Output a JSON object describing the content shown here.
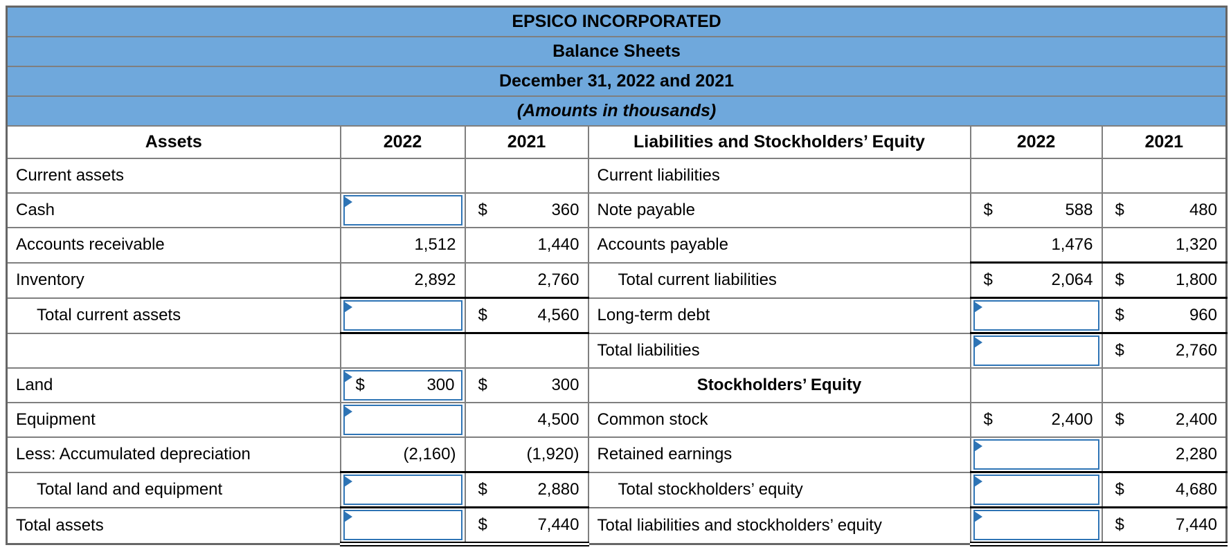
{
  "titles": [
    "EPSICO INCORPORATED",
    "Balance Sheets",
    "December 31, 2022 and 2021",
    "(Amounts in thousands)"
  ],
  "header": {
    "assets": "Assets",
    "left_2022": "2022",
    "left_2021": "2021",
    "liabilities": "Liabilities and Stockholders’ Equity",
    "right_2022": "2022",
    "right_2021": "2021"
  },
  "colors": {
    "header_blue": "#6FA8DC",
    "grid_line": "#7F7F7F",
    "outer_border": "#666666",
    "sum_line": "#000000",
    "input_border": "#2E74B5"
  },
  "rows": [
    {
      "left": {
        "label": "Current assets"
      },
      "right": {
        "label": "Current liabilities"
      }
    },
    {
      "left": {
        "label": "Cash",
        "c22": {
          "input": true
        },
        "c21": {
          "d": "$",
          "v": "360"
        }
      },
      "right": {
        "label": "Note payable",
        "c22": {
          "d": "$",
          "v": "588"
        },
        "c21": {
          "d": "$",
          "v": "480"
        }
      }
    },
    {
      "left": {
        "label": "Accounts receivable",
        "c22": {
          "v": "1,512"
        },
        "c21": {
          "v": "1,440"
        }
      },
      "right": {
        "label": "Accounts payable",
        "c22": {
          "v": "1,476"
        },
        "c21": {
          "v": "1,320"
        }
      }
    },
    {
      "left": {
        "label": "Inventory",
        "c22": {
          "v": "2,892"
        },
        "c21": {
          "v": "2,760"
        }
      },
      "right": {
        "label": "Total current liabilities",
        "indent": true,
        "c22": {
          "d": "$",
          "v": "2,064",
          "ruleTop": true
        },
        "c21": {
          "d": "$",
          "v": "1,800",
          "ruleTop": true
        }
      }
    },
    {
      "left": {
        "label": "Total current assets",
        "indent": true,
        "c22": {
          "input": true,
          "ruleTop": true,
          "ruleBottom": true
        },
        "c21": {
          "d": "$",
          "v": "4,560",
          "ruleTop": true,
          "ruleBottom": true
        }
      },
      "right": {
        "label": "Long-term debt",
        "c22": {
          "input": true,
          "ruleTop": true
        },
        "c21": {
          "d": "$",
          "v": "960",
          "ruleTop": true
        }
      }
    },
    {
      "left": {
        "label": ""
      },
      "right": {
        "label": "Total liabilities",
        "c22": {
          "input": true,
          "ruleTop": true
        },
        "c21": {
          "d": "$",
          "v": "2,760",
          "ruleTop": true
        }
      }
    },
    {
      "left": {
        "label": "Land",
        "c22": {
          "input": true,
          "d": "$",
          "v": "300"
        },
        "c21": {
          "d": "$",
          "v": "300"
        }
      },
      "right": {
        "label": "Stockholders’ Equity",
        "center": true,
        "bold": true
      }
    },
    {
      "left": {
        "label": "Equipment",
        "c22": {
          "input": true
        },
        "c21": {
          "v": "4,500"
        }
      },
      "right": {
        "label": "Common stock",
        "c22": {
          "d": "$",
          "v": "2,400"
        },
        "c21": {
          "d": "$",
          "v": "2,400"
        }
      }
    },
    {
      "left": {
        "label": "Less: Accumulated depreciation",
        "c22": {
          "v": "(2,160)"
        },
        "c21": {
          "v": "(1,920)"
        }
      },
      "right": {
        "label": "Retained earnings",
        "c22": {
          "input": true
        },
        "c21": {
          "v": "2,280"
        }
      }
    },
    {
      "left": {
        "label": "Total land and equipment",
        "indent": true,
        "c22": {
          "input": true,
          "ruleTop": true
        },
        "c21": {
          "d": "$",
          "v": "2,880",
          "ruleTop": true
        }
      },
      "right": {
        "label": "Total stockholders’ equity",
        "indent": true,
        "c22": {
          "input": true,
          "ruleTop": true
        },
        "c21": {
          "d": "$",
          "v": "4,680",
          "ruleTop": true
        }
      }
    },
    {
      "left": {
        "label": "Total assets",
        "c22": {
          "input": true,
          "ruleTop": true,
          "doubleBottom": true
        },
        "c21": {
          "d": "$",
          "v": "7,440",
          "ruleTop": true,
          "doubleBottom": true
        }
      },
      "right": {
        "label": "Total liabilities and stockholders’ equity",
        "c22": {
          "input": true,
          "ruleTop": true,
          "doubleBottom": true
        },
        "c21": {
          "d": "$",
          "v": "7,440",
          "ruleTop": true,
          "doubleBottom": true
        }
      }
    }
  ]
}
